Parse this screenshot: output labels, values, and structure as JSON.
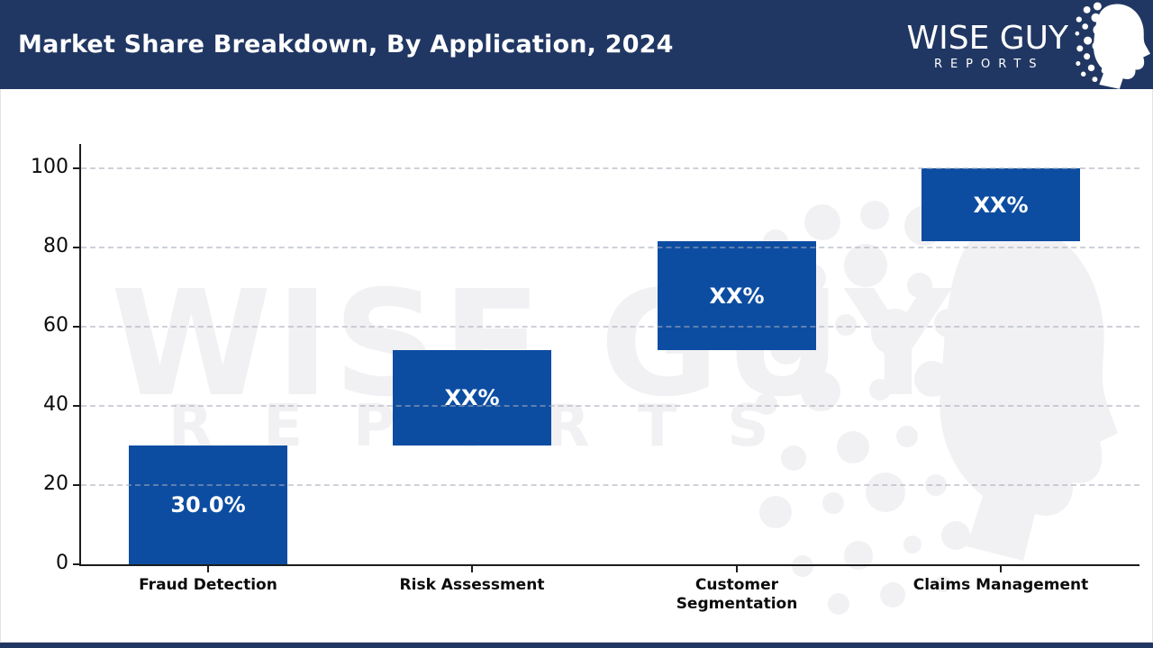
{
  "header": {
    "title": "Market Share Breakdown, By Application, 2024",
    "logo_main": "WISE GUY",
    "logo_sub": "REPORTS"
  },
  "watermark": {
    "line1": "WISE GUY",
    "line2": "REPORTS"
  },
  "chart_data": {
    "type": "bar",
    "subtype": "waterfall",
    "title": "Market Share Breakdown, By Application, 2024",
    "categories": [
      "Fraud Detection",
      "Risk Assessment",
      "Customer Segmentation",
      "Claims Management"
    ],
    "tick_labels": [
      "Fraud Detection",
      "Risk Assessment",
      "Customer\nSegmentation",
      "Claims Management"
    ],
    "segments": [
      {
        "category": "Fraud Detection",
        "start": 0,
        "end": 30,
        "label": "30.0%"
      },
      {
        "category": "Risk Assessment",
        "start": 30,
        "end": 54,
        "label": "XX%"
      },
      {
        "category": "Customer Segmentation",
        "start": 54,
        "end": 81.5,
        "label": "XX%"
      },
      {
        "category": "Claims Management",
        "start": 81.5,
        "end": 100,
        "label": "XX%"
      }
    ],
    "xlabel": "",
    "ylabel": "",
    "ylim": [
      0,
      100
    ],
    "yticks": [
      0,
      20,
      40,
      60,
      80,
      100
    ],
    "grid": "horizontal dashed, drawn over bars",
    "legend": "none"
  },
  "colors": {
    "header_bg": "#213763",
    "bar": "#0c4da2",
    "bar_label": "#ffffff",
    "axis": "#1c1c1c",
    "grid": "#a6acb8",
    "watermark": "#f1f1f3"
  }
}
